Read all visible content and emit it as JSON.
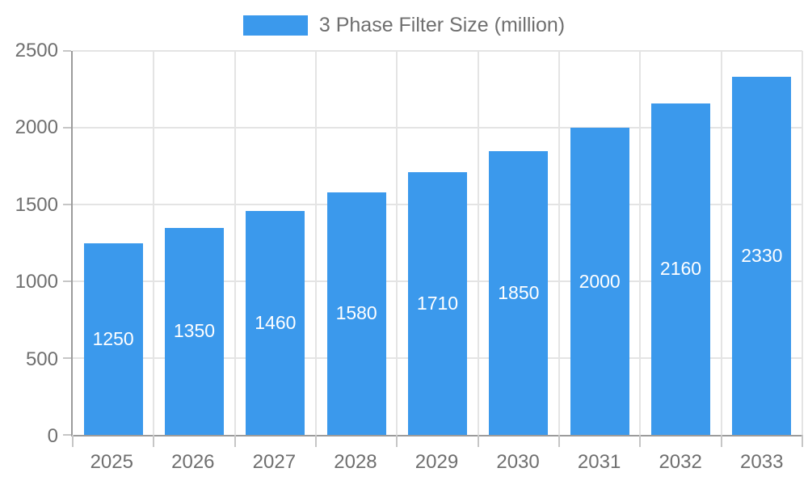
{
  "legend": {
    "label": "3 Phase Filter Size (million)"
  },
  "chart_data": {
    "type": "bar",
    "title": "3 Phase Filter Size (million)",
    "categories": [
      "2025",
      "2026",
      "2027",
      "2028",
      "2029",
      "2030",
      "2031",
      "2032",
      "2033"
    ],
    "series": [
      {
        "name": "3 Phase Filter Size (million)",
        "values": [
          1250,
          1350,
          1460,
          1580,
          1710,
          1850,
          2000,
          2160,
          2330
        ]
      }
    ],
    "data_labels": [
      "1250",
      "1350",
      "1460",
      "1580",
      "1710",
      "1850",
      "2000",
      "2160",
      "2330"
    ],
    "xlabel": "",
    "ylabel": "",
    "ylim": [
      0,
      2500
    ],
    "y_ticks": [
      0,
      500,
      1000,
      1500,
      2000,
      2500
    ],
    "grid": true,
    "legend_position": "top",
    "colors": {
      "bar": "#3b99ec",
      "grid": "#e4e4e4",
      "axis": "#9b9b9b",
      "tick": "#c6c6c6",
      "axis_text": "#6f6f6f",
      "bar_label_text": "#ffffff"
    }
  }
}
